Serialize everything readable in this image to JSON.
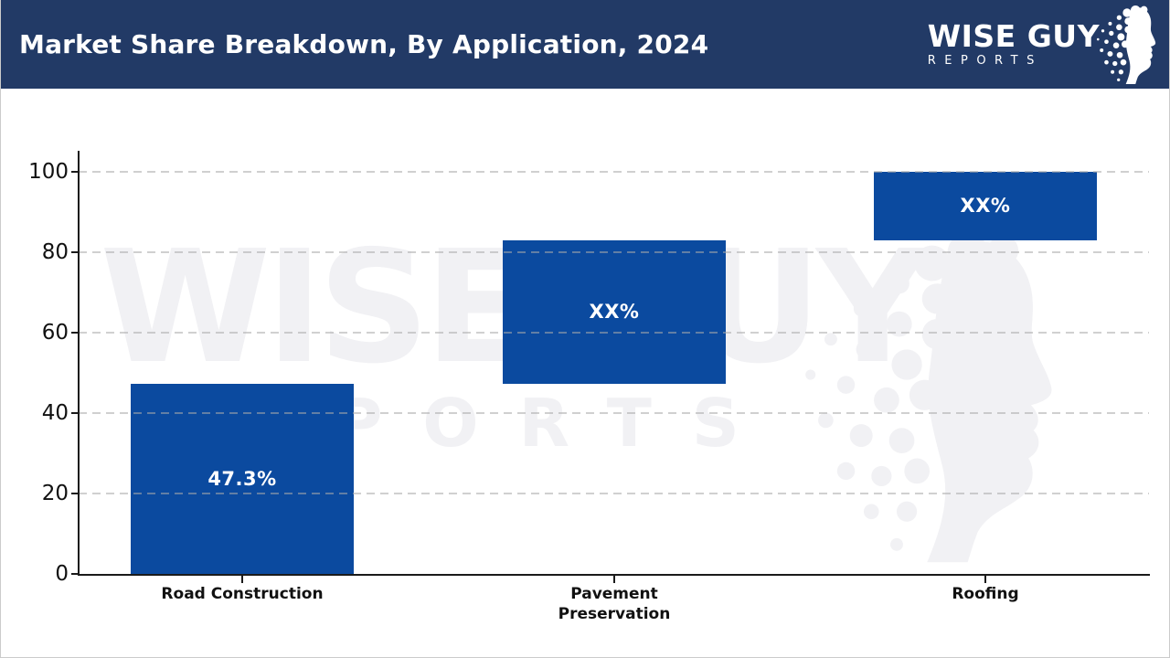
{
  "header": {
    "title": "Market Share Breakdown, By Application, 2024",
    "logo": {
      "line1": "WISE GUY",
      "line2": "REPORTS"
    }
  },
  "watermark": {
    "line1": "WISE GUY",
    "line2": "REPORTS"
  },
  "colors": {
    "header_background": "#223a66",
    "bar_blue": "#0b4a9f",
    "grid_gray": "#d8d8d8",
    "watermark_gray": "#f1f1f4",
    "axis_black": "#1a1a1a",
    "bar_label_white": "#ffffff"
  },
  "chart_data": {
    "type": "bar",
    "subtype": "waterfall-floating-segments",
    "title": "Market Share Breakdown, By Application, 2024",
    "categories": [
      "Road Construction",
      "Pavement Preservation",
      "Roofing"
    ],
    "segments": [
      {
        "category": "Road Construction",
        "start": 0,
        "end": 47.3,
        "label": "47.3%"
      },
      {
        "category": "Pavement Preservation",
        "start": 47.3,
        "end": 83,
        "label": "XX%"
      },
      {
        "category": "Roofing",
        "start": 83,
        "end": 100,
        "label": "XX%"
      }
    ],
    "xlabel": "",
    "ylabel": "",
    "ylim": [
      0,
      100
    ],
    "yticks": [
      0,
      20,
      40,
      60,
      80,
      100
    ],
    "grid": "horizontal dashed, drawn above bars",
    "legend": "none"
  }
}
